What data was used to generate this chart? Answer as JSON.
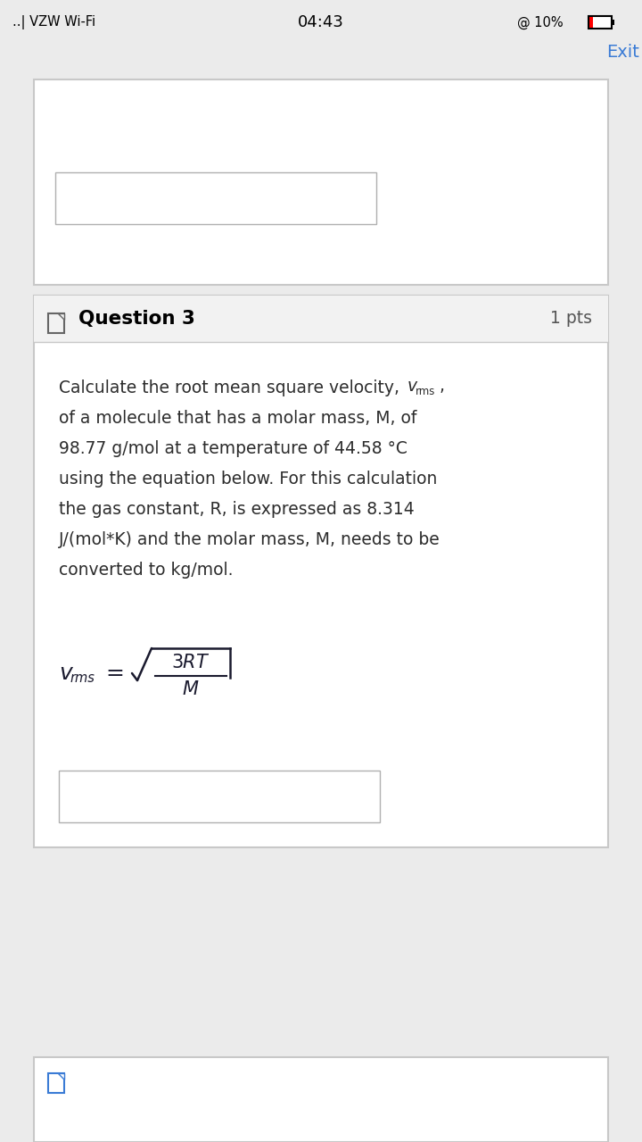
{
  "bg_color": "#ebebeb",
  "white": "#ffffff",
  "status_left": "..| VZW Wi-Fi",
  "status_center": "04:43",
  "status_right": "@ 10%",
  "exit_text": "Exit",
  "exit_color": "#3a7bd5",
  "question_header": "Question 3",
  "pts_label": "1 pts",
  "body_text_lines": [
    "Calculate the root mean square velocity, v",
    "of a molecule that has a molar mass, M, of",
    "98.77 g/mol at a temperature of 44.58 °C",
    "using the equation below. For this calculation",
    "the gas constant, R, is expressed as 8.314",
    "J/(mol*K) and the molar mass, M, needs to be",
    "converted to kg/mol."
  ],
  "text_color": "#2c2c2c",
  "border_color": "#cccccc",
  "header_bg": "#f2f2f2",
  "dark_text": "#1a1a2e",
  "card_border": "#c8c8c8"
}
